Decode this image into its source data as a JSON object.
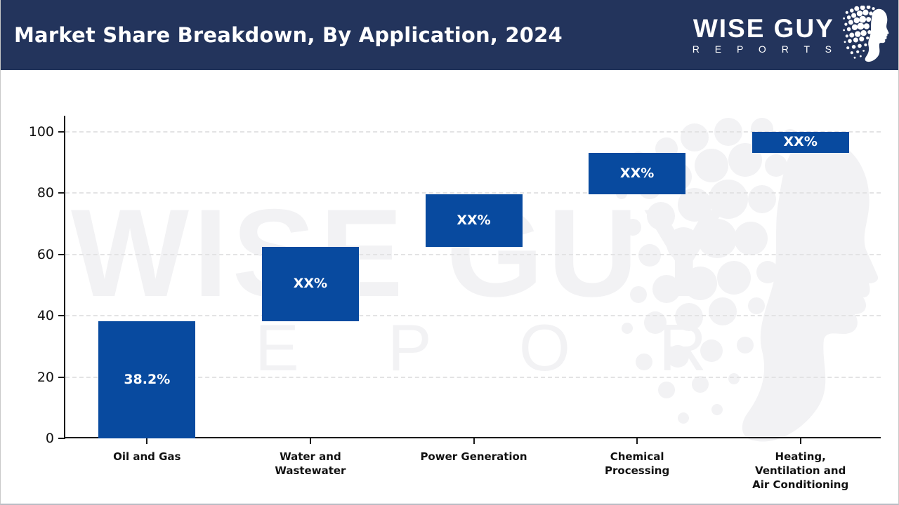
{
  "header": {
    "title": "Market Share Breakdown, By Application, 2024",
    "logo": {
      "line1": "WISE GUY",
      "line2": "R E P O R T S"
    }
  },
  "watermark": {
    "line1": "WISE GUY",
    "line2": "R E P O R T S"
  },
  "colors": {
    "header_bg": "#23345c",
    "bar": "#084a9f",
    "grid": "#e3e3e4",
    "axis": "#1a1a1a",
    "bar_label_text": "#ffffff",
    "watermark": "#f2f2f4"
  },
  "chart_data": {
    "type": "bar",
    "subtype": "waterfall",
    "title": "Market Share Breakdown, By Application, 2024",
    "unit": "percent market share",
    "ylim": [
      0,
      100
    ],
    "yticks": [
      0,
      20,
      40,
      60,
      80,
      100
    ],
    "grid": "horizontal dashed",
    "legend": "none",
    "categories": [
      {
        "name": "Oil and Gas",
        "label_lines": [
          "Oil and Gas"
        ],
        "start": 0,
        "end": 38.2,
        "bar_label": "38.2%"
      },
      {
        "name": "Water and Wastewater",
        "label_lines": [
          "Water and",
          "Wastewater"
        ],
        "start": 38.2,
        "end": 62.4,
        "bar_label": "XX%"
      },
      {
        "name": "Power Generation",
        "label_lines": [
          "Power Generation"
        ],
        "start": 62.4,
        "end": 79.6,
        "bar_label": "XX%"
      },
      {
        "name": "Chemical Processing",
        "label_lines": [
          "Chemical",
          "Processing"
        ],
        "start": 79.6,
        "end": 93.1,
        "bar_label": "XX%"
      },
      {
        "name": "Heating, Ventilation and Air Conditioning",
        "label_lines": [
          "Heating,",
          "Ventilation and",
          "Air Conditioning"
        ],
        "start": 93.1,
        "end": 100,
        "bar_label": "XX%"
      }
    ]
  }
}
